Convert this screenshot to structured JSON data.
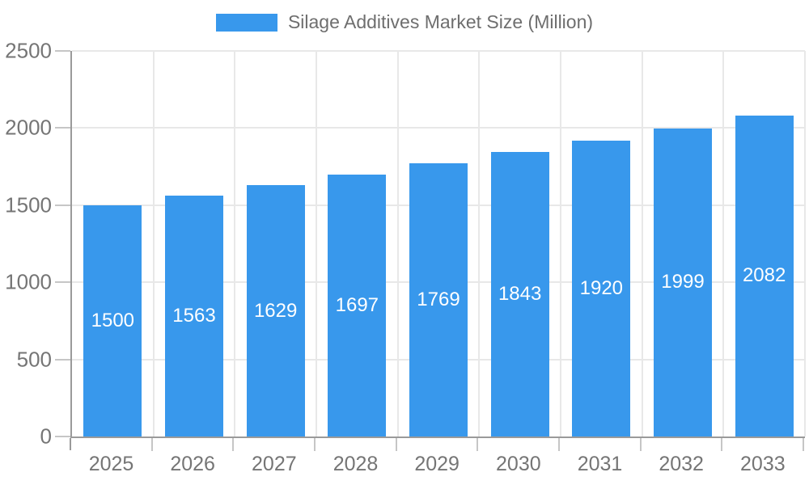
{
  "legend": {
    "label": "Silage Additives Market Size (Million)"
  },
  "colors": {
    "bar": "#3898EC",
    "grid": "#e8e8e8",
    "axis": "#9a9a9a",
    "tick": "#c6c6c6",
    "tick_text": "#757575",
    "legend_text": "#6e6e6e",
    "value_label": "#ffffff",
    "background": "#ffffff"
  },
  "chart_data": {
    "type": "bar",
    "title": "Silage Additives Market Size (Million)",
    "categories": [
      "2025",
      "2026",
      "2027",
      "2028",
      "2029",
      "2030",
      "2031",
      "2032",
      "2033"
    ],
    "values": [
      1500,
      1563,
      1629,
      1697,
      1769,
      1843,
      1920,
      1999,
      2082
    ],
    "xlabel": "",
    "ylabel": "",
    "ylim": [
      0,
      2500
    ],
    "yticks": [
      0,
      500,
      1000,
      1500,
      2000,
      2500
    ],
    "grid": true,
    "legend_position": "top",
    "value_labels": "inside-center"
  }
}
